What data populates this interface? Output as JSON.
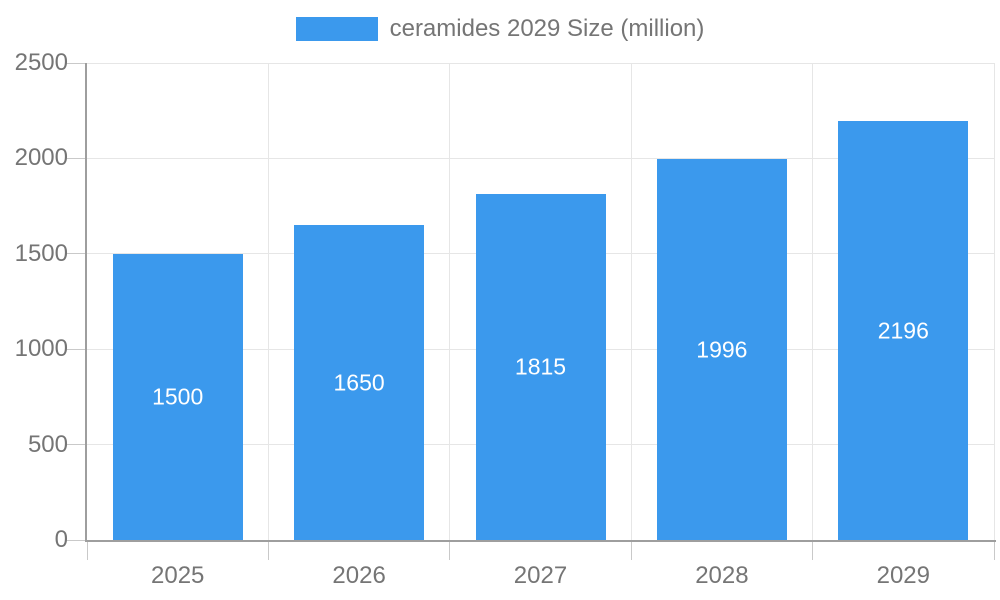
{
  "chart_data": {
    "type": "bar",
    "title": "ceramides 2029 Size (million)",
    "categories": [
      "2025",
      "2026",
      "2027",
      "2028",
      "2029"
    ],
    "values": [
      1500,
      1650,
      1815,
      1996,
      2196
    ],
    "value_labels": [
      "1500",
      "1650",
      "1815",
      "1996",
      "2196"
    ],
    "xlabel": "",
    "ylabel": "",
    "ylim": [
      0,
      2500
    ],
    "yticks": [
      0,
      500,
      1000,
      1500,
      2000,
      2500
    ],
    "ytick_labels": [
      "0",
      "500",
      "1000",
      "1500",
      "2000",
      "2500"
    ],
    "grid": true,
    "legend_position": "top",
    "colors": {
      "bar": "#3B99ED",
      "grid": "#E6E6E6",
      "tick": "#C9C9C9",
      "axis": "#9E9E9E",
      "text": "#757575",
      "value_label": "#FFFFFF",
      "background": "#FFFFFF"
    }
  }
}
